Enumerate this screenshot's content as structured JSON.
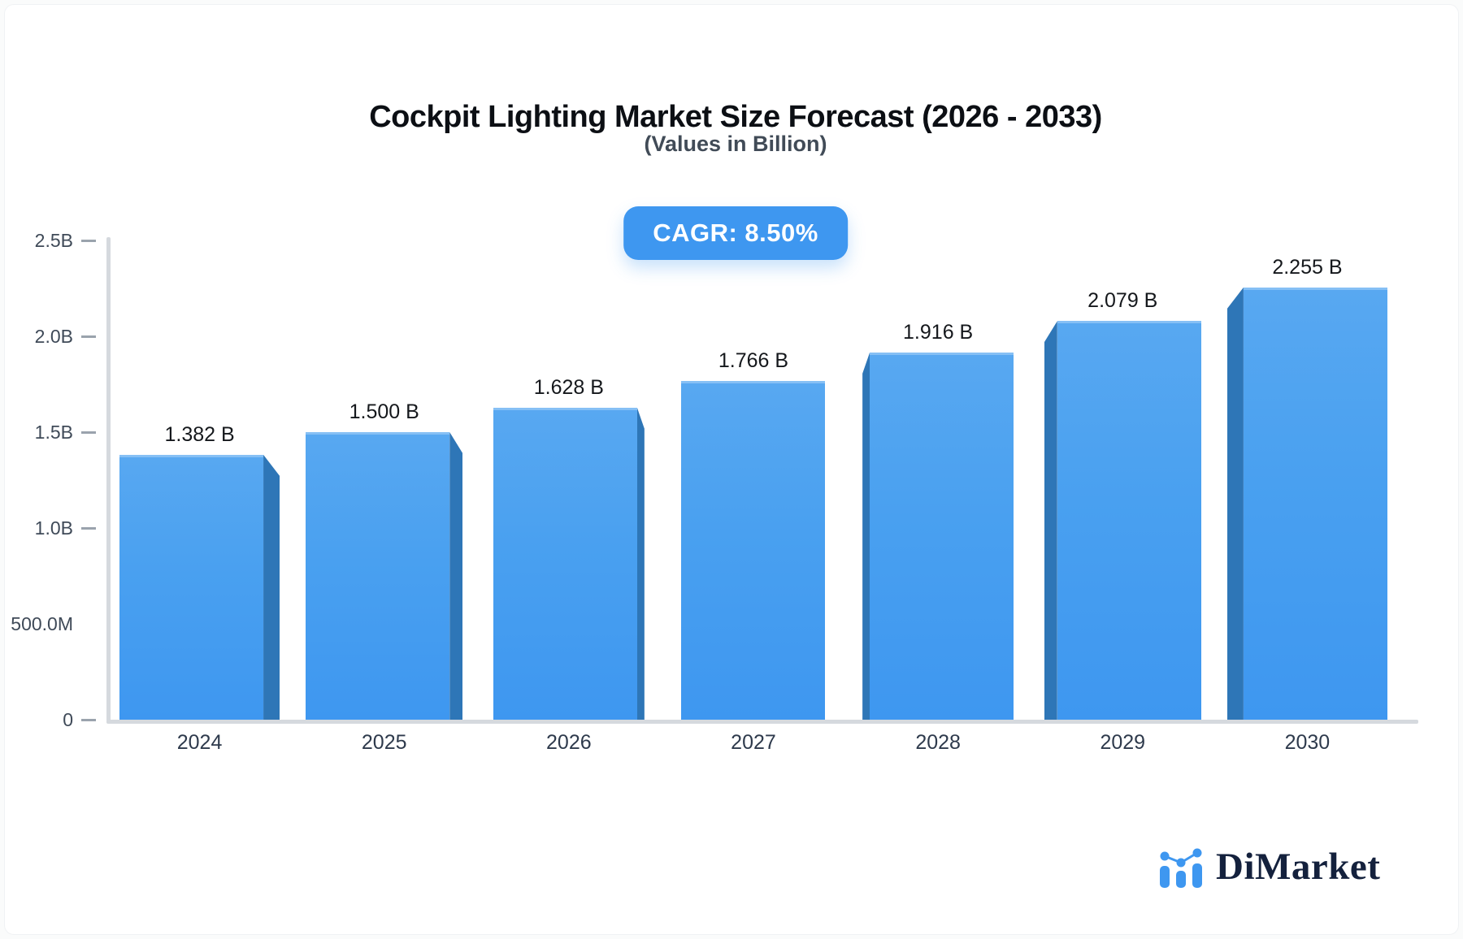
{
  "header": {
    "title": "Cockpit Lighting Market Size Forecast (2026 - 2033)",
    "subtitle": "(Values in Billion)",
    "cagr_badge": "CAGR: 8.50%"
  },
  "chart_data": {
    "type": "bar",
    "title": "Cockpit Lighting Market Size Forecast (2026 - 2033)",
    "subtitle": "(Values in Billion)",
    "categories": [
      "2024",
      "2025",
      "2026",
      "2027",
      "2028",
      "2029",
      "2030"
    ],
    "values": [
      1.382,
      1.5,
      1.628,
      1.766,
      1.916,
      2.079,
      2.255
    ],
    "value_labels": [
      "1.382 B",
      "1.500 B",
      "1.628 B",
      "1.766 B",
      "1.916 B",
      "2.079 B",
      "2.255 B"
    ],
    "unit": "Billion",
    "cagr": "8.50%",
    "xlabel": "",
    "ylabel": "",
    "ylim": [
      0,
      2.5
    ],
    "yticks": [
      {
        "label": "2.5B",
        "value": 2.5,
        "tick": true
      },
      {
        "label": "2.0B",
        "value": 2.0,
        "tick": true
      },
      {
        "label": "1.5B",
        "value": 1.5,
        "tick": true
      },
      {
        "label": "1.0B",
        "value": 1.0,
        "tick": true
      },
      {
        "label": "500.0M",
        "value": 0.5,
        "tick": false
      },
      {
        "label": "0",
        "value": 0.0,
        "tick": true
      }
    ],
    "grid": false,
    "legend": false,
    "colors": {
      "bar_face_top": "#58a8f1",
      "bar_face_bottom": "#3e97f0",
      "bar_side": "#2e76b7",
      "axis_line": "#d5d9de",
      "badge_background": "#3e97f0",
      "badge_text": "#ffffff"
    }
  },
  "logo": {
    "text": "DiMarket",
    "icon": "bar-chart-logo-icon",
    "icon_color": "#3e97f0",
    "text_color": "#14213d"
  }
}
